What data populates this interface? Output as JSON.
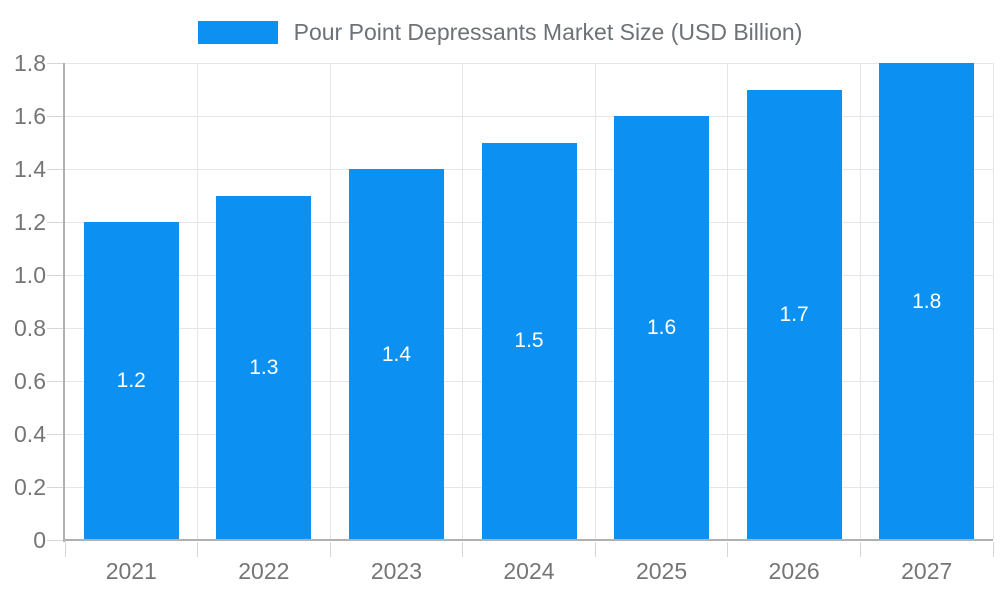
{
  "chart_data": {
    "type": "bar",
    "title": "Pour Point Depressants Market Size (USD Billion)",
    "legend": {
      "label": "Pour Point Depressants Market Size (USD Billion)",
      "position": "top"
    },
    "categories": [
      "2021",
      "2022",
      "2023",
      "2024",
      "2025",
      "2026",
      "2027"
    ],
    "series": [
      {
        "name": "Pour Point Depressants Market Size (USD Billion)",
        "values": [
          1.2,
          1.3,
          1.4,
          1.5,
          1.6,
          1.7,
          1.8
        ]
      }
    ],
    "data_labels": [
      "1.2",
      "1.3",
      "1.4",
      "1.5",
      "1.6",
      "1.7",
      "1.8"
    ],
    "xlabel": "",
    "ylabel": "",
    "ylim": [
      0,
      1.8
    ],
    "ytick_labels": [
      "1.8",
      "1.6",
      "1.4",
      "1.2",
      "1.0",
      "0.8",
      "0.6",
      "0.4",
      "0.2",
      "0"
    ],
    "grid": true,
    "colors": {
      "bar": "#0c90f2",
      "grid": "#e6e6e6",
      "tick": "#d6d6d6",
      "axis": "#b0b0b0",
      "axis_label": "#757575",
      "legend_text": "#6d7276",
      "data_label": "#ffffff",
      "background": "#ffffff"
    }
  }
}
